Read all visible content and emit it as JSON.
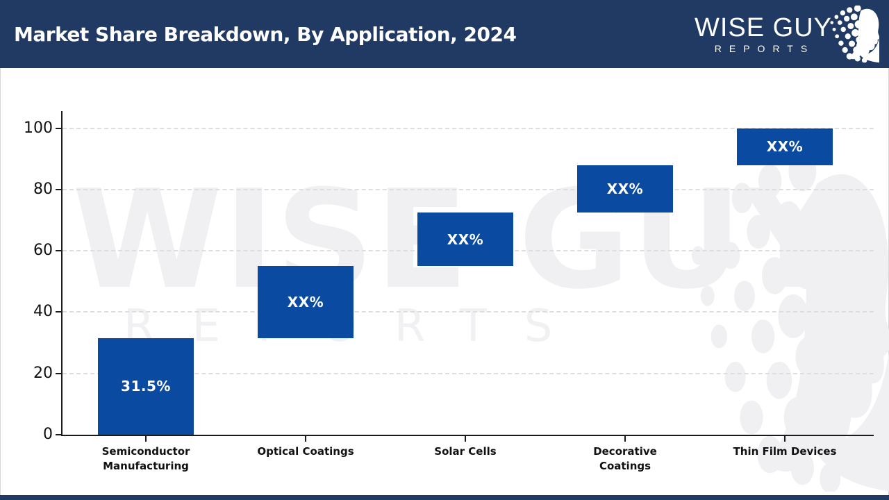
{
  "header": {
    "title": "Market Share Breakdown, By Application, 2024",
    "bg_color": "#203a64",
    "logo_line1": "WISE GUY",
    "logo_line2": "REPORTS"
  },
  "watermark": {
    "line1": "WISE GUY",
    "line2": "REPORTS"
  },
  "chart_data": {
    "type": "bar",
    "subtype": "waterfall",
    "title": "Market Share Breakdown, By Application, 2024",
    "categories": [
      "Semiconductor Manufacturing",
      "Optical Coatings",
      "Solar Cells",
      "Decorative Coatings",
      "Thin Film Devices"
    ],
    "segments": [
      {
        "category": "Semiconductor Manufacturing",
        "label_lines": [
          "Semiconductor",
          "Manufacturing"
        ],
        "start": 0,
        "end": 31.5,
        "bar_label": "31.5%"
      },
      {
        "category": "Optical Coatings",
        "label_lines": [
          "Optical Coatings"
        ],
        "start": 31.5,
        "end": 55,
        "bar_label": "XX%"
      },
      {
        "category": "Solar Cells",
        "label_lines": [
          "Solar Cells"
        ],
        "start": 55,
        "end": 72.5,
        "bar_label": "XX%"
      },
      {
        "category": "Decorative Coatings",
        "label_lines": [
          "Decorative",
          "Coatings"
        ],
        "start": 72.5,
        "end": 88,
        "bar_label": "XX%"
      },
      {
        "category": "Thin Film Devices",
        "label_lines": [
          "Thin Film Devices"
        ],
        "start": 88,
        "end": 100,
        "bar_label": "XX%"
      }
    ],
    "y_ticks": [
      0,
      20,
      40,
      60,
      80,
      100
    ],
    "ylim": [
      0,
      105
    ],
    "xlabel": "",
    "ylabel": "",
    "grid": "horizontal-dashed",
    "legend": "none",
    "bar_color": "#0b4aa1",
    "bar_label_color": "#ffffff",
    "gridline_color": "#dedede",
    "axis_color": "#1a1a1a"
  }
}
